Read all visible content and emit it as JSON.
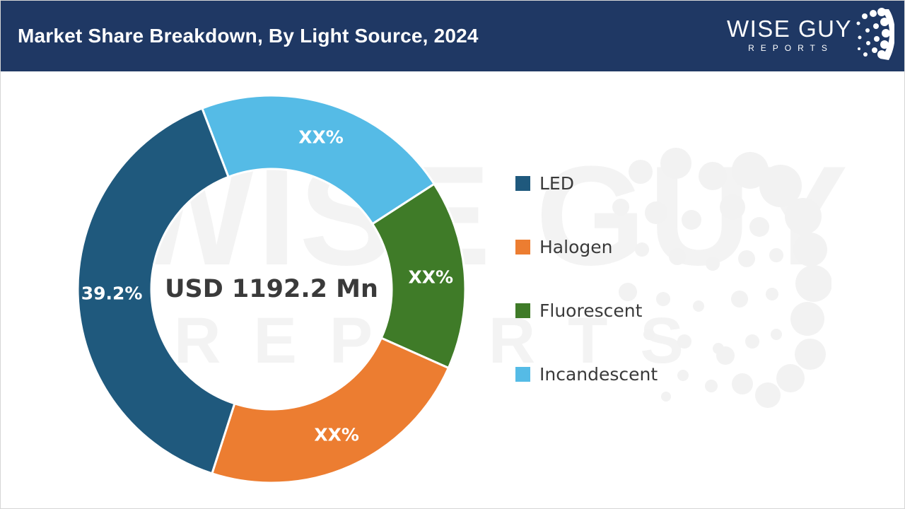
{
  "header": {
    "title": "Market Share Breakdown, By Light Source, 2024",
    "logo": {
      "line1": "WISE GUY",
      "line2": "REPORTS"
    }
  },
  "watermark": {
    "line1": "WISE GUY",
    "line2": "REPORTS"
  },
  "chart_data": {
    "type": "pie",
    "subtype": "donut",
    "title": "Market Share Breakdown, By Light Source, 2024",
    "center_label": "USD 1192.2 Mn",
    "start_angle_deg": -21,
    "legend_position": "right",
    "segments": [
      {
        "name": "Incandescent",
        "label": "XX%",
        "value_pct": 21.7,
        "color": "#55bbe6"
      },
      {
        "name": "Fluorescent",
        "label": "XX%",
        "value_pct": 15.8,
        "color": "#3f7b28"
      },
      {
        "name": "Halogen",
        "label": "XX%",
        "value_pct": 23.3,
        "color": "#ec7d31"
      },
      {
        "name": "LED",
        "label": "39.2%",
        "value_pct": 39.2,
        "color": "#1f597d"
      }
    ],
    "legend": [
      "LED",
      "Halogen",
      "Fluorescent",
      "Incandescent"
    ]
  },
  "colors": {
    "header_bg": "#1f3864",
    "center_text": "#3a3a3a",
    "slice_label_text": "#ffffff",
    "legend_text": "#3a3a3a",
    "watermark": "#f3f3f3"
  }
}
